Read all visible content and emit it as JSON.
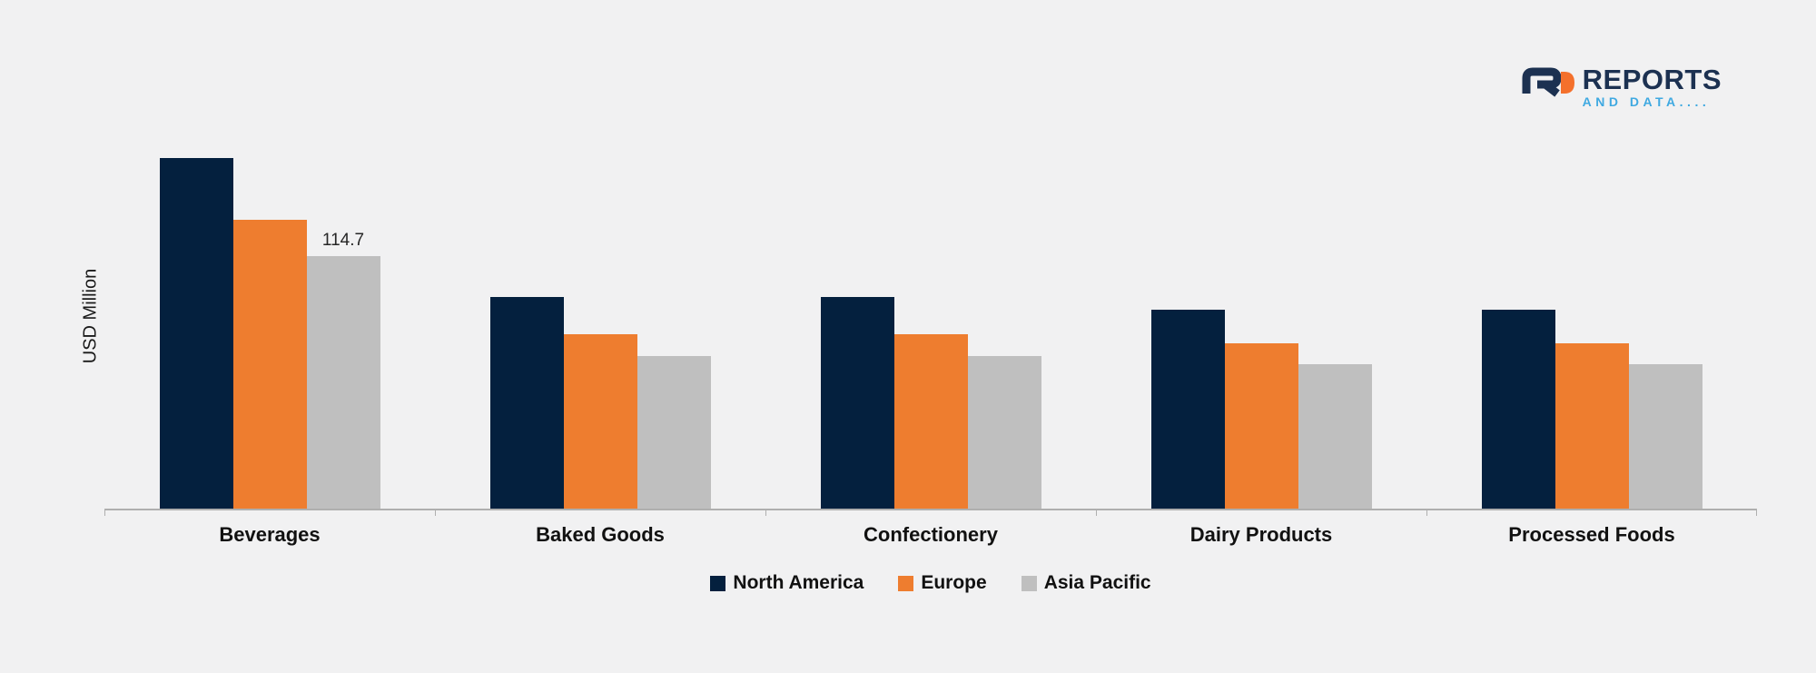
{
  "logo": {
    "line1": "REPORTS",
    "line2": "AND DATA....",
    "mark_navy": "#1C3151",
    "mark_orange": "#F4702C",
    "line1_color": "#1C3151",
    "line2_color": "#3FA9E1"
  },
  "colors": {
    "background": "#F1F1F2",
    "axis": "#AFAFAF",
    "label_text": "#111111",
    "value_text": "#262626"
  },
  "chart_data": {
    "type": "bar",
    "title": "",
    "xlabel": "",
    "ylabel": "USD Million",
    "categories": [
      "Beverages",
      "Baked Goods",
      "Confectionery",
      "Dairy Products",
      "Processed Foods"
    ],
    "series": [
      {
        "name": "North America",
        "color": "#04203E",
        "values": [
          159.0,
          95.8,
          95.9,
          90.2,
          90.1
        ]
      },
      {
        "name": "Europe",
        "color": "#EE7D2F",
        "values": [
          131.1,
          79.1,
          79.1,
          74.9,
          74.8
        ]
      },
      {
        "name": "Asia Pacific",
        "color": "#BFBFBF",
        "values": [
          114.7,
          69.2,
          69.2,
          65.5,
          65.4
        ]
      }
    ],
    "ylim": [
      0,
      173
    ],
    "grid": false,
    "legend_position": "bottom",
    "data_labels": [
      {
        "series": "Asia Pacific",
        "category": "Beverages",
        "text": "114.7"
      }
    ]
  }
}
